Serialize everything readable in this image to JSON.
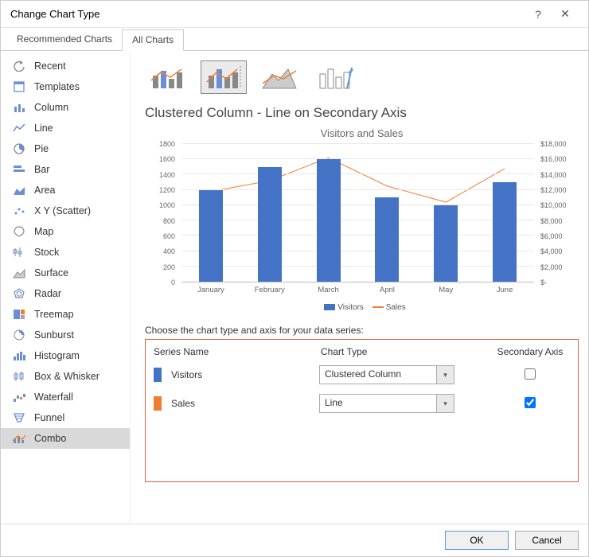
{
  "window": {
    "title": "Change Chart Type"
  },
  "tabs": {
    "recommended": "Recommended Charts",
    "all": "All Charts"
  },
  "sidebar": {
    "items": [
      {
        "label": "Recent"
      },
      {
        "label": "Templates"
      },
      {
        "label": "Column"
      },
      {
        "label": "Line"
      },
      {
        "label": "Pie"
      },
      {
        "label": "Bar"
      },
      {
        "label": "Area"
      },
      {
        "label": "X Y (Scatter)"
      },
      {
        "label": "Map"
      },
      {
        "label": "Stock"
      },
      {
        "label": "Surface"
      },
      {
        "label": "Radar"
      },
      {
        "label": "Treemap"
      },
      {
        "label": "Sunburst"
      },
      {
        "label": "Histogram"
      },
      {
        "label": "Box & Whisker"
      },
      {
        "label": "Waterfall"
      },
      {
        "label": "Funnel"
      },
      {
        "label": "Combo"
      }
    ],
    "active_index": 18
  },
  "subtype_title": "Clustered Column - Line on Secondary Axis",
  "chart": {
    "title": "Visitors and Sales",
    "categories": [
      "January",
      "February",
      "March",
      "April",
      "May",
      "June"
    ],
    "visitors": [
      1200,
      1500,
      1600,
      1100,
      1000,
      1300
    ],
    "sales": [
      11800,
      13200,
      16200,
      12500,
      10400,
      14800
    ],
    "left_axis": {
      "min": 0,
      "max": 1800,
      "step": 200
    },
    "right_axis": {
      "min": 0,
      "max": 18000,
      "step": 2000,
      "prefix": "$"
    },
    "colors": {
      "bar": "#4472c4",
      "line": "#ed7d31",
      "grid": "#e8e8e8",
      "bg": "#ffffff"
    },
    "legend": {
      "visitors": "Visitors",
      "sales": "Sales"
    }
  },
  "series_section": {
    "heading": "Choose the chart type and axis for your data series:",
    "cols": {
      "name": "Series Name",
      "type": "Chart Type",
      "axis": "Secondary Axis"
    },
    "rows": [
      {
        "name": "Visitors",
        "color": "#4472c4",
        "type": "Clustered Column",
        "secondary": false
      },
      {
        "name": "Sales",
        "color": "#ed7d31",
        "type": "Line",
        "secondary": true
      }
    ]
  },
  "buttons": {
    "ok": "OK",
    "cancel": "Cancel"
  }
}
